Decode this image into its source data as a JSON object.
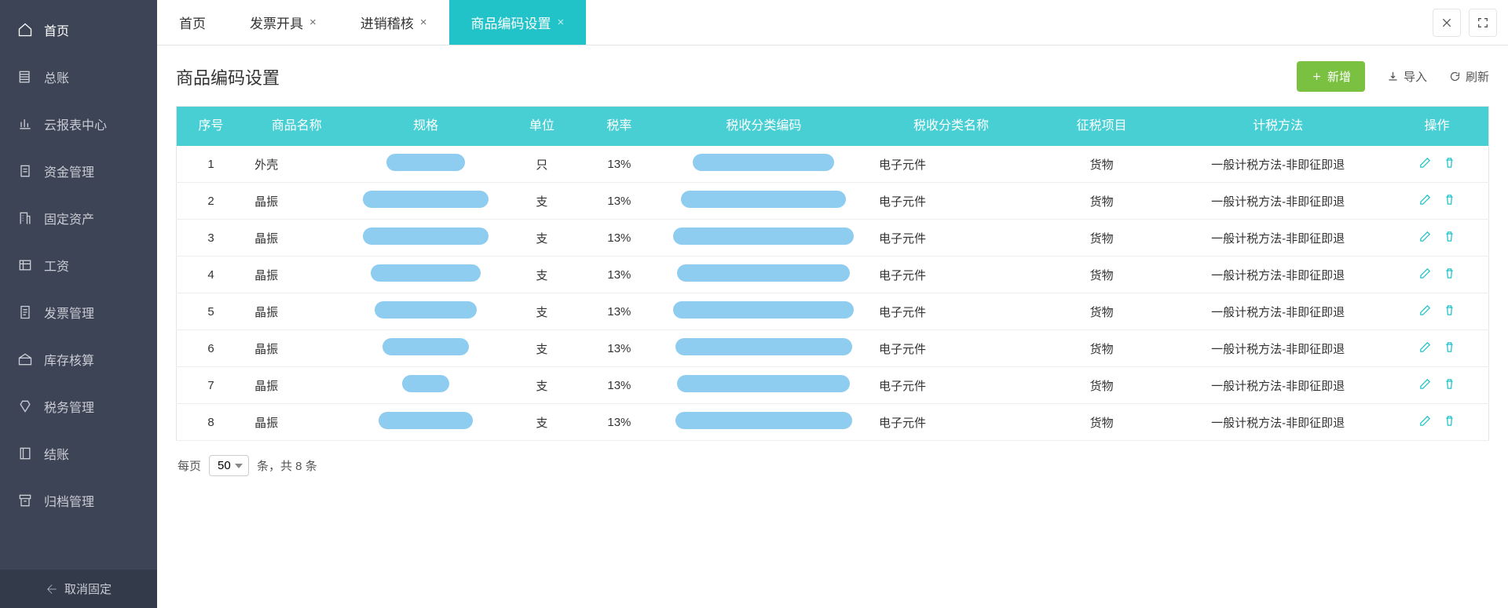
{
  "sidebar": {
    "items": [
      {
        "label": "首页",
        "icon": "home"
      },
      {
        "label": "总账",
        "icon": "ledger"
      },
      {
        "label": "云报表中心",
        "icon": "chart"
      },
      {
        "label": "资金管理",
        "icon": "money"
      },
      {
        "label": "固定资产",
        "icon": "building"
      },
      {
        "label": "工资",
        "icon": "salary"
      },
      {
        "label": "发票管理",
        "icon": "invoice"
      },
      {
        "label": "库存核算",
        "icon": "stock"
      },
      {
        "label": "税务管理",
        "icon": "tax"
      },
      {
        "label": "结账",
        "icon": "close-book"
      },
      {
        "label": "归档管理",
        "icon": "archive"
      }
    ],
    "footer": "取消固定"
  },
  "tabs": {
    "items": [
      {
        "label": "首页",
        "closable": false,
        "active": false
      },
      {
        "label": "发票开具",
        "closable": true,
        "active": false
      },
      {
        "label": "进销稽核",
        "closable": true,
        "active": false
      },
      {
        "label": "商品编码设置",
        "closable": true,
        "active": true
      }
    ]
  },
  "page": {
    "title": "商品编码设置",
    "add_label": "新增",
    "import_label": "导入",
    "refresh_label": "刷新"
  },
  "table": {
    "columns": [
      "序号",
      "商品名称",
      "规格",
      "单位",
      "税率",
      "税收分类编码",
      "税收分类名称",
      "征税项目",
      "计税方法",
      "操作"
    ],
    "rows": [
      {
        "idx": "1",
        "name": "外壳",
        "spec_redact_w": 100,
        "unit": "只",
        "rate": "13%",
        "code_redact_w": 180,
        "cat": "电子元件",
        "taxitem": "货物",
        "method": "一般计税方法-非即征即退"
      },
      {
        "idx": "2",
        "name": "晶振",
        "spec_redact_w": 160,
        "unit": "支",
        "rate": "13%",
        "code_redact_w": 210,
        "cat": "电子元件",
        "taxitem": "货物",
        "method": "一般计税方法-非即征即退"
      },
      {
        "idx": "3",
        "name": "晶振",
        "spec_redact_w": 160,
        "unit": "支",
        "rate": "13%",
        "code_redact_w": 230,
        "cat": "电子元件",
        "taxitem": "货物",
        "method": "一般计税方法-非即征即退"
      },
      {
        "idx": "4",
        "name": "晶振",
        "spec_redact_w": 140,
        "unit": "支",
        "rate": "13%",
        "code_redact_w": 220,
        "cat": "电子元件",
        "taxitem": "货物",
        "method": "一般计税方法-非即征即退"
      },
      {
        "idx": "5",
        "name": "晶振",
        "spec_redact_w": 130,
        "unit": "支",
        "rate": "13%",
        "code_redact_w": 230,
        "cat": "电子元件",
        "taxitem": "货物",
        "method": "一般计税方法-非即征即退"
      },
      {
        "idx": "6",
        "name": "晶振",
        "spec_redact_w": 110,
        "unit": "支",
        "rate": "13%",
        "code_redact_w": 225,
        "cat": "电子元件",
        "taxitem": "货物",
        "method": "一般计税方法-非即征即退"
      },
      {
        "idx": "7",
        "name": "晶振",
        "spec_redact_w": 60,
        "unit": "支",
        "rate": "13%",
        "code_redact_w": 220,
        "cat": "电子元件",
        "taxitem": "货物",
        "method": "一般计税方法-非即征即退"
      },
      {
        "idx": "8",
        "name": "晶振",
        "spec_redact_w": 120,
        "unit": "支",
        "rate": "13%",
        "code_redact_w": 225,
        "cat": "电子元件",
        "taxitem": "货物",
        "method": "一般计税方法-非即征即退"
      }
    ]
  },
  "pager": {
    "per_page_label_prefix": "每页",
    "per_page_value": "50",
    "suffix": "条，共 8 条"
  },
  "colors": {
    "sidebar_bg": "#3d4455",
    "tab_active_bg": "#22c3c8",
    "table_header_bg": "#48cfd4",
    "primary_btn": "#7ac142",
    "redact": "#8fcdf0",
    "icon_teal": "#22c3c8"
  }
}
